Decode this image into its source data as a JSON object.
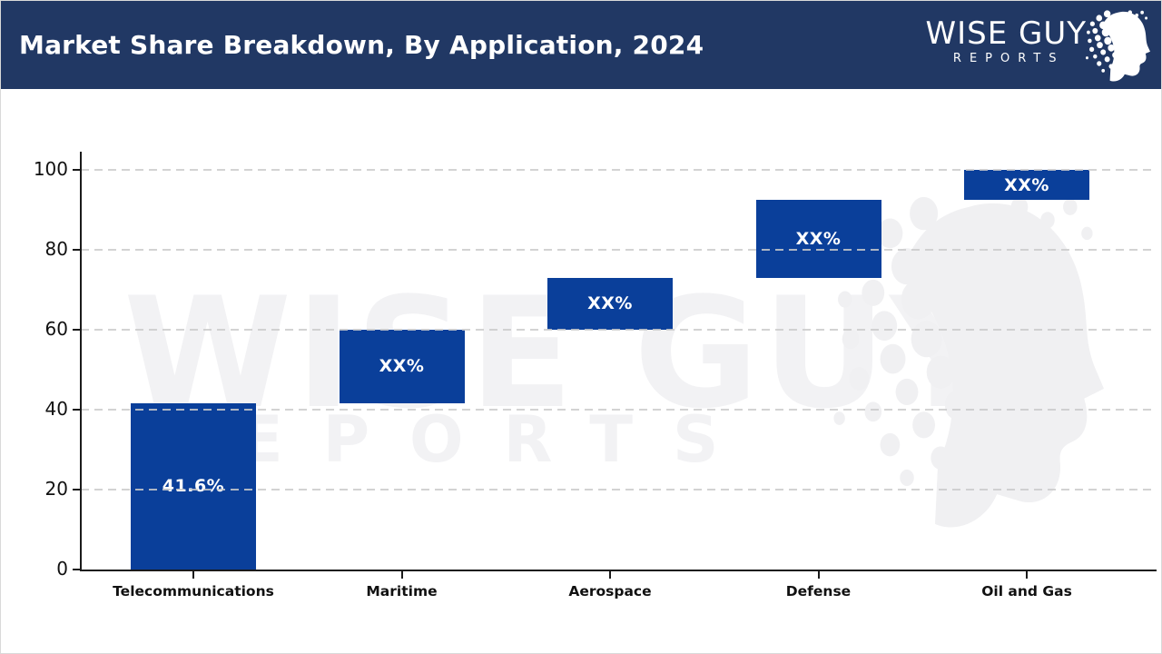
{
  "header": {
    "title": "Market Share Breakdown, By Application, 2024",
    "bg_color": "#213864",
    "logo": {
      "line1": "WISE GUY",
      "line2": "REPORTS"
    }
  },
  "watermark": {
    "line1": "WISE GUY",
    "line2": "REPORTS"
  },
  "chart_data": {
    "type": "bar",
    "subtype": "waterfall",
    "title": "Market Share Breakdown, By Application, 2024",
    "xlabel": "",
    "ylabel": "",
    "ylim": [
      0,
      105
    ],
    "y_ticks": [
      0,
      20,
      40,
      60,
      80,
      100
    ],
    "grid": true,
    "legend": false,
    "bar_color": "#0A3F9A",
    "label_color": "#ffffff",
    "categories": [
      "Telecommunications",
      "Maritime",
      "Aerospace",
      "Defense",
      "Oil and Gas"
    ],
    "segments": [
      {
        "category": "Telecommunications",
        "start": 0,
        "end": 41.6,
        "label": "41.6%"
      },
      {
        "category": "Maritime",
        "start": 41.6,
        "end": 60,
        "label": "XX%"
      },
      {
        "category": "Aerospace",
        "start": 60,
        "end": 73,
        "label": "XX%"
      },
      {
        "category": "Defense",
        "start": 73,
        "end": 92.5,
        "label": "XX%"
      },
      {
        "category": "Oil and Gas",
        "start": 92.5,
        "end": 100,
        "label": "XX%"
      }
    ]
  }
}
